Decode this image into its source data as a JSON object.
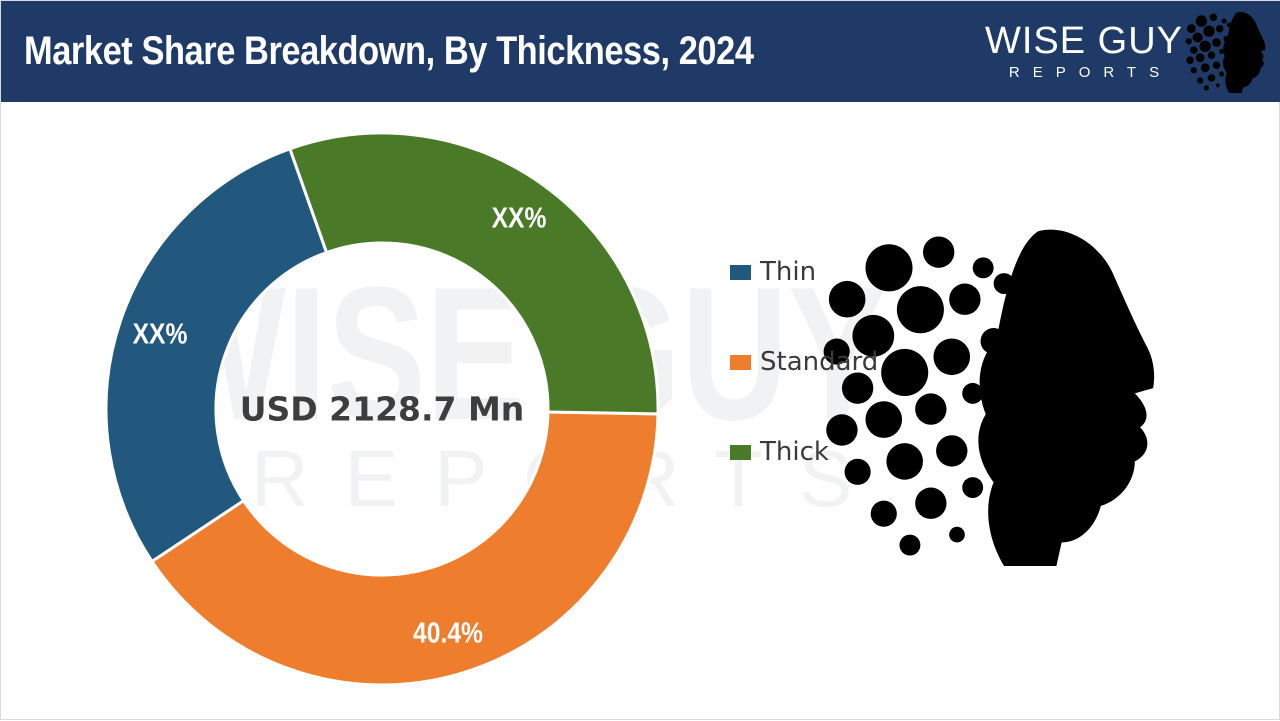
{
  "header": {
    "title": "Market Share Breakdown, By Thickness, 2024",
    "bg_color": "#1f3a66",
    "logo": {
      "line1": "WISE GUY",
      "line2": "REPORTS"
    }
  },
  "watermark": {
    "line1": "WISE GUY",
    "line2": "REPORTS"
  },
  "chart_data": {
    "type": "donut",
    "title": "Market Share Breakdown, By Thickness, 2024",
    "center_label": "USD 2128.7 Mn",
    "legend_position": "right",
    "direction": "counterclockwise",
    "start_angle_deg_math": 109.5,
    "segments": [
      {
        "name": "Thin",
        "label": "XX%",
        "value_shown": null,
        "value_pct_estimate": 28.9,
        "color": "#22577e"
      },
      {
        "name": "Standard",
        "label": "40.4%",
        "value_shown": 40.4,
        "value_pct_estimate": 40.4,
        "color": "#ee7d2e"
      },
      {
        "name": "Thick",
        "label": "XX%",
        "value_shown": null,
        "value_pct_estimate": 30.7,
        "color": "#4a7a28"
      }
    ]
  }
}
